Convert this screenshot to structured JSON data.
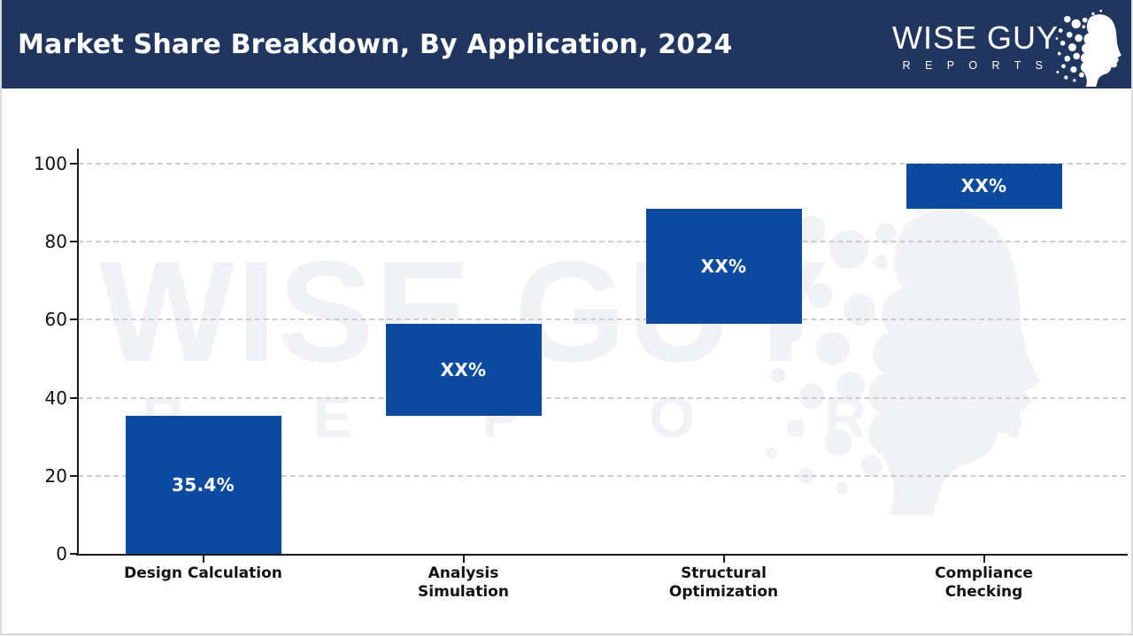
{
  "header": {
    "title": "Market Share Breakdown, By Application, 2024",
    "logo_line1": "WISE GUY",
    "logo_line2": "R E P O R T S"
  },
  "watermark": {
    "line1": "WISE GUY",
    "line2": "R E P O R T S"
  },
  "chart_data": {
    "type": "bar",
    "subtype": "waterfall",
    "title": "Market Share Breakdown, By Application, 2024",
    "categories": [
      "Design Calculation",
      "Analysis Simulation",
      "Structural Optimization",
      "Compliance Checking"
    ],
    "categories_display": [
      [
        "Design Calculation"
      ],
      [
        "Analysis",
        "Simulation"
      ],
      [
        "Structural",
        "Optimization"
      ],
      [
        "Compliance",
        "Checking"
      ]
    ],
    "segments": [
      {
        "category": "Design Calculation",
        "start": 0,
        "end": 35.4,
        "label": "35.4%"
      },
      {
        "category": "Analysis Simulation",
        "start": 35.4,
        "end": 59,
        "label": "XX%"
      },
      {
        "category": "Structural Optimization",
        "start": 59,
        "end": 88.5,
        "label": "XX%"
      },
      {
        "category": "Compliance Checking",
        "start": 88.5,
        "end": 100,
        "label": "XX%"
      }
    ],
    "y_ticks": [
      0,
      20,
      40,
      60,
      80,
      100
    ],
    "ylim": [
      0,
      105
    ],
    "xlabel": "",
    "ylabel": "",
    "legend": "none",
    "grid": "horizontal-dashed",
    "colors": {
      "bar": "#0b4a9e",
      "grid": "#cccccc",
      "axis": "#1a1a1a",
      "bar_label": "#ffffff",
      "header_bg": "#21365f",
      "header_text": "#ffffff",
      "watermark": "#f0f2f5"
    }
  }
}
